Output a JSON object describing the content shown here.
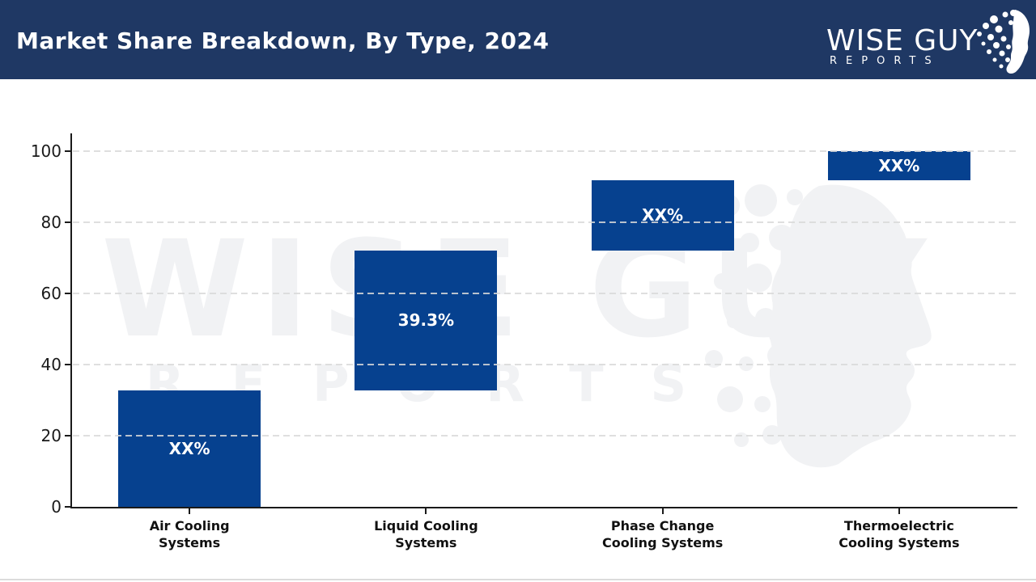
{
  "header": {
    "title": "Market Share Breakdown, By Type, 2024",
    "bg_color": "#1f3864",
    "logo": {
      "line1": "WISE GUY",
      "line2": "REPORTS"
    }
  },
  "watermark": {
    "line1": "WISE GUY",
    "line2": "REPORTS"
  },
  "chart_data": {
    "type": "bar",
    "subtype": "waterfall",
    "title": "Market Share Breakdown, By Type, 2024",
    "xlabel": "",
    "ylabel": "",
    "bar_color": "#06418f",
    "grid": true,
    "grid_style": "dashed",
    "legend": "none",
    "ylim": [
      0,
      105
    ],
    "yticks": [
      0,
      20,
      40,
      60,
      80,
      100
    ],
    "categories": [
      [
        "Air Cooling",
        "Systems"
      ],
      [
        "Liquid Cooling",
        "Systems"
      ],
      [
        "Phase Change",
        "Cooling Systems"
      ],
      [
        "Thermoelectric",
        "Cooling Systems"
      ]
    ],
    "bars": [
      {
        "category": "Air Cooling Systems",
        "label": "XX%",
        "start": 0,
        "end": 32.8,
        "value_est": 32.8
      },
      {
        "category": "Liquid Cooling Systems",
        "label": "39.3%",
        "start": 32.8,
        "end": 72.1,
        "value_est": 39.3
      },
      {
        "category": "Phase Change Cooling Systems",
        "label": "XX%",
        "start": 72.1,
        "end": 91.9,
        "value_est": 19.8
      },
      {
        "category": "Thermoelectric Cooling Systems",
        "label": "XX%",
        "start": 91.9,
        "end": 100.0,
        "value_est": 8.1
      }
    ]
  }
}
